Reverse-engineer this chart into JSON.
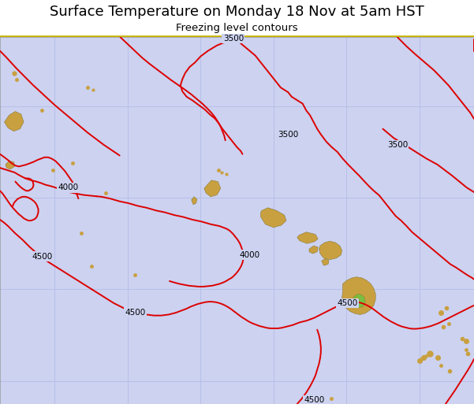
{
  "title": "Surface Temperature on Monday 18 Nov at 5am HST",
  "subtitle": "Freezing level contours",
  "bg_color": "#ccd2f0",
  "grid_color": "#b8bfe8",
  "border_top_color": "#c8b400",
  "contour_color": "#dd0000",
  "label_bg": "#ccd2f0",
  "title_fontsize": 13,
  "subtitle_fontsize": 9.5,
  "contour_lw": 1.4,
  "label_fontsize": 7.5,
  "land_color": "#c9a040",
  "green_color": "#78c040",
  "yellow_color": "#e0e020",
  "xlim": [
    -165.5,
    -152.5
  ],
  "ylim": [
    17.5,
    25.5
  ],
  "xticks": [
    -164,
    -162,
    -160,
    -158,
    -156,
    -154
  ],
  "yticks": [
    18,
    20,
    22,
    24
  ]
}
